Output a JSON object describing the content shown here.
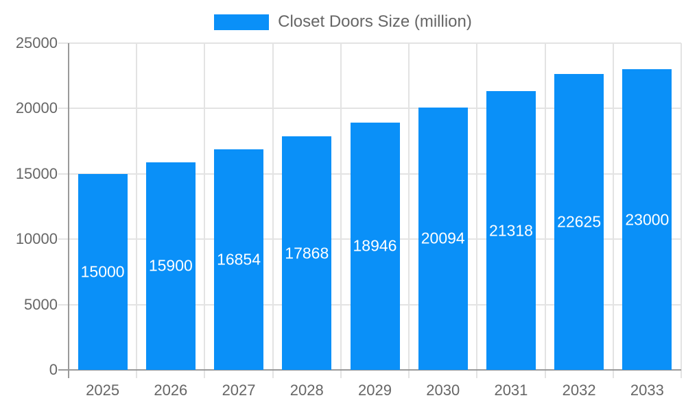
{
  "chart_data": {
    "type": "bar",
    "title": "",
    "categories": [
      "2025",
      "2026",
      "2027",
      "2028",
      "2029",
      "2030",
      "2031",
      "2032",
      "2033"
    ],
    "series": [
      {
        "name": "Closet Doors Size (million)",
        "color": "#0a90f8",
        "values": [
          15000,
          15900,
          16854,
          17868,
          18946,
          20094,
          21318,
          22625,
          23000
        ]
      }
    ],
    "value_labels": [
      15000,
      15900,
      16854,
      17868,
      18946,
      20094,
      21318,
      22625,
      23000
    ],
    "value_label_position": "inside-center",
    "value_label_color": "#ffffff",
    "xlabel": "",
    "ylabel": "",
    "ylim": [
      0,
      25000
    ],
    "yticks": [
      0,
      5000,
      10000,
      15000,
      20000,
      25000
    ],
    "grid": "on",
    "legend_position": "top",
    "colors": {
      "bar": "#0a90f8",
      "axis_line": "#999999",
      "grid_line": "#e3e3e3",
      "tick_text": "#666666",
      "legend_text": "#666666",
      "background": "#ffffff"
    }
  }
}
